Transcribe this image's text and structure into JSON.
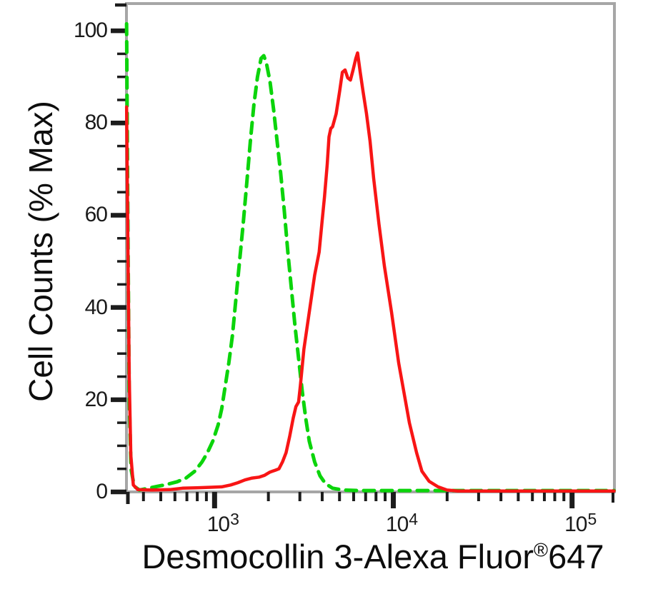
{
  "chart_data": {
    "type": "line",
    "subtype": "flow-cytometry-histogram-overlay",
    "title": "",
    "xlabel": "Desmocollin 3-Alexa Fluor®647",
    "xlabel_parts": {
      "pre": "Desmocollin 3-Alexa Fluor",
      "registered": "®",
      "post": "647"
    },
    "ylabel": "Cell Counts (% Max)",
    "x_scale": "log10",
    "x_axis": {
      "range": [
        322,
        172000
      ],
      "log_min": 2.507,
      "log_max": 5.237,
      "major_tick_values": [
        1000,
        10000,
        100000
      ],
      "major_tick_exponents": [
        3,
        4,
        5
      ],
      "major_tick_label_base": "10",
      "minor_tick_mantissas": [
        2,
        3,
        4,
        5,
        6,
        7,
        8,
        9
      ],
      "end_ticks": true
    },
    "y_axis": {
      "range": [
        0,
        105.9
      ],
      "major_ticks": [
        0,
        20,
        40,
        60,
        80,
        100
      ],
      "major_tick_labels": [
        "0",
        "20",
        "40",
        "60",
        "80",
        "100"
      ],
      "minor_tick_step": 5,
      "end_tick": true
    },
    "grid": false,
    "legend": "none",
    "series": [
      {
        "id": "green-dashed-control-curve",
        "style": "dashed",
        "color": "#0bd40b",
        "stroke_width": 5,
        "dash_pattern": [
          15,
          10
        ],
        "peak": {
          "x": 1884,
          "y_percent": 94.6
        },
        "edge_spike_percent": 101.5,
        "points": [
          [
            322,
            101.5
          ],
          [
            327,
            60
          ],
          [
            333,
            20
          ],
          [
            341,
            5
          ],
          [
            355,
            1.2
          ],
          [
            380,
            0.4
          ],
          [
            427,
            0.8
          ],
          [
            479,
            1.2
          ],
          [
            537,
            1.6
          ],
          [
            617,
            2.2
          ],
          [
            692,
            3.0
          ],
          [
            776,
            4.5
          ],
          [
            851,
            6.5
          ],
          [
            912,
            8.5
          ],
          [
            977,
            11
          ],
          [
            1047,
            14.5
          ],
          [
            1096,
            18
          ],
          [
            1148,
            23
          ],
          [
            1202,
            28
          ],
          [
            1259,
            34
          ],
          [
            1318,
            42
          ],
          [
            1380,
            50
          ],
          [
            1445,
            58
          ],
          [
            1514,
            67
          ],
          [
            1585,
            76
          ],
          [
            1660,
            84
          ],
          [
            1738,
            90
          ],
          [
            1820,
            94
          ],
          [
            1884,
            94.6
          ],
          [
            1950,
            93
          ],
          [
            2042,
            89
          ],
          [
            2138,
            83
          ],
          [
            2239,
            76
          ],
          [
            2344,
            69
          ],
          [
            2455,
            61
          ],
          [
            2570,
            52
          ],
          [
            2692,
            44
          ],
          [
            2818,
            36
          ],
          [
            2951,
            29
          ],
          [
            3090,
            22
          ],
          [
            3236,
            16
          ],
          [
            3388,
            11
          ],
          [
            3631,
            6.5
          ],
          [
            3890,
            3.5
          ],
          [
            4169,
            1.8
          ],
          [
            4571,
            0.8
          ],
          [
            5248,
            0.4
          ],
          [
            6310,
            0.3
          ],
          [
            15849,
            0.3
          ],
          [
            63096,
            0.3
          ],
          [
            172000,
            0.3
          ]
        ]
      },
      {
        "id": "red-solid-stained-curve",
        "style": "solid",
        "color": "#f81515",
        "stroke_width": 4.5,
        "peak": {
          "x": 6310,
          "y_percent": 95.2
        },
        "edge_spike_percent": 83.5,
        "points": [
          [
            322,
            83.5
          ],
          [
            327,
            55
          ],
          [
            333,
            25
          ],
          [
            340,
            8
          ],
          [
            351,
            1.5
          ],
          [
            372,
            0.5
          ],
          [
            447,
            0.4
          ],
          [
            562,
            0.5
          ],
          [
            661,
            0.8
          ],
          [
            794,
            0.9
          ],
          [
            955,
            1.0
          ],
          [
            1096,
            1.1
          ],
          [
            1230,
            1.5
          ],
          [
            1349,
            2.0
          ],
          [
            1479,
            2.6
          ],
          [
            1622,
            3.0
          ],
          [
            1778,
            3.2
          ],
          [
            1905,
            3.6
          ],
          [
            2042,
            4.3
          ],
          [
            2188,
            4.7
          ],
          [
            2291,
            5.0
          ],
          [
            2399,
            6.5
          ],
          [
            2512,
            8.5
          ],
          [
            2630,
            12
          ],
          [
            2754,
            16
          ],
          [
            2851,
            18.5
          ],
          [
            2951,
            19.5
          ],
          [
            3020,
            23
          ],
          [
            3162,
            31
          ],
          [
            3388,
            39
          ],
          [
            3631,
            47
          ],
          [
            3846,
            52
          ],
          [
            3981,
            58
          ],
          [
            4121,
            64
          ],
          [
            4266,
            71
          ],
          [
            4365,
            77
          ],
          [
            4467,
            78.8
          ],
          [
            4571,
            79.2
          ],
          [
            4786,
            82
          ],
          [
            5012,
            87
          ],
          [
            5188,
            91
          ],
          [
            5370,
            91.5
          ],
          [
            5559,
            89.8
          ],
          [
            5754,
            89.3
          ],
          [
            5957,
            91.5
          ],
          [
            6166,
            94
          ],
          [
            6310,
            95.2
          ],
          [
            6531,
            91
          ],
          [
            6761,
            87
          ],
          [
            7079,
            82
          ],
          [
            7413,
            76
          ],
          [
            7762,
            68
          ],
          [
            8318,
            58
          ],
          [
            8913,
            49
          ],
          [
            9772,
            39
          ],
          [
            10715,
            28
          ],
          [
            11482,
            21.5
          ],
          [
            12303,
            15
          ],
          [
            13490,
            8.5
          ],
          [
            14454,
            4.5
          ],
          [
            15849,
            2.3
          ],
          [
            17783,
            1.1
          ],
          [
            19953,
            0.4
          ],
          [
            22909,
            0.2
          ],
          [
            63096,
            0.2
          ],
          [
            172000,
            0.2
          ]
        ]
      }
    ],
    "frame": {
      "color": "#a6a6a6",
      "stroke_width": 4
    },
    "tick_color": "#1c1c1c"
  },
  "colors": {
    "background": "#ffffff",
    "text": "#0d0d0d",
    "green_curve": "#0bd40b",
    "red_curve": "#f81515",
    "frame_gray": "#a6a6a6"
  }
}
